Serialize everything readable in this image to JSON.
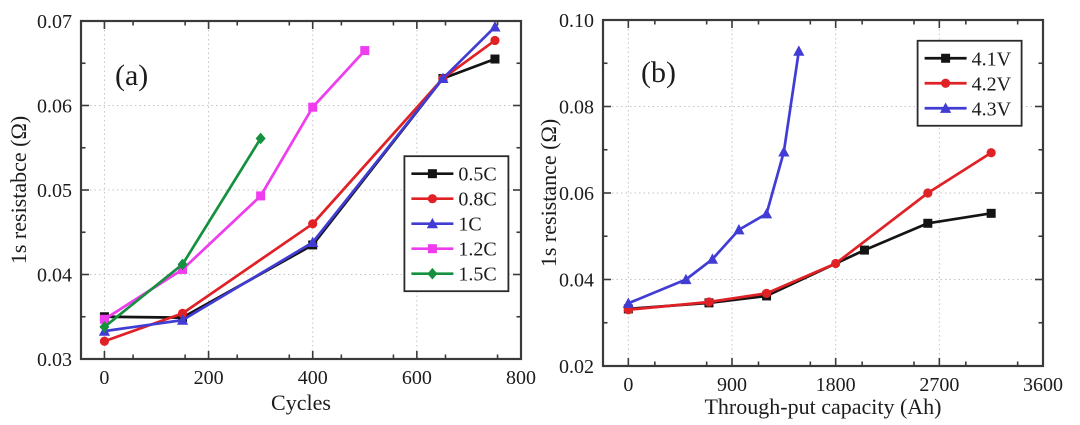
{
  "figure": {
    "background": "#ffffff",
    "frame_color": "#3a3a3a",
    "grid_color": "#c4c4c4",
    "text_color": "#1c1c1c"
  },
  "chart_data": [
    {
      "panel": "a",
      "type": "line",
      "panel_label": "(a)",
      "xlabel": "Cycles",
      "ylabel": "1s resistabce (Ω)",
      "xlim": [
        -45,
        800
      ],
      "ylim": [
        0.03,
        0.07
      ],
      "xticks": [
        0,
        200,
        400,
        600,
        800
      ],
      "yticks": [
        0.03,
        0.04,
        0.05,
        0.06,
        0.07
      ],
      "x_minor_step": 100,
      "y_minor_step": 0.005,
      "y_decimals": 2,
      "grid": true,
      "legend": {
        "fx": 0.735,
        "fy": 0.4
      },
      "series": [
        {
          "name": "0.5C",
          "color": "#141414",
          "marker": "square",
          "x": [
            0,
            150,
            400,
            650,
            750
          ],
          "y": [
            0.035,
            0.0349,
            0.0435,
            0.0632,
            0.0655
          ]
        },
        {
          "name": "0.8C",
          "color": "#e02125",
          "marker": "circle",
          "x": [
            0,
            150,
            400,
            650,
            750
          ],
          "y": [
            0.0321,
            0.0354,
            0.046,
            0.0632,
            0.0677
          ]
        },
        {
          "name": "1C",
          "color": "#403cd4",
          "marker": "triangle",
          "x": [
            0,
            150,
            400,
            650,
            750
          ],
          "y": [
            0.0333,
            0.0346,
            0.0438,
            0.0632,
            0.0693
          ]
        },
        {
          "name": "1.2C",
          "color": "#ee3cee",
          "marker": "square",
          "x": [
            0,
            150,
            300,
            400,
            500
          ],
          "y": [
            0.0347,
            0.0406,
            0.0493,
            0.0598,
            0.0665
          ]
        },
        {
          "name": "1.5C",
          "color": "#15903f",
          "marker": "diamond",
          "x": [
            0,
            150,
            300
          ],
          "y": [
            0.0338,
            0.0412,
            0.0561
          ]
        }
      ]
    },
    {
      "panel": "b",
      "type": "line",
      "panel_label": "(b)",
      "xlabel": "Through-put capacity (Ah)",
      "ylabel": "1s resistance (Ω)",
      "xlim": [
        -220,
        3600
      ],
      "ylim": [
        0.02,
        0.1
      ],
      "xticks": [
        0,
        900,
        1800,
        2700,
        3600
      ],
      "yticks": [
        0.02,
        0.04,
        0.06,
        0.08,
        0.1
      ],
      "x_minor_step": 450,
      "y_minor_step": 0.01,
      "y_decimals": 2,
      "grid": true,
      "legend": {
        "fx": 0.715,
        "fy": 0.06
      },
      "series": [
        {
          "name": "4.1V",
          "color": "#141414",
          "marker": "square",
          "x": [
            0,
            700,
            1200,
            2050,
            2600,
            3150
          ],
          "y": [
            0.0332,
            0.0346,
            0.0362,
            0.0468,
            0.053,
            0.0553
          ]
        },
        {
          "name": "4.2V",
          "color": "#e02125",
          "marker": "circle",
          "x": [
            0,
            700,
            1200,
            1800,
            2600,
            3150
          ],
          "y": [
            0.033,
            0.0348,
            0.0368,
            0.0437,
            0.06,
            0.0693
          ]
        },
        {
          "name": "4.3V",
          "color": "#403cd4",
          "marker": "triangle",
          "x": [
            0,
            500,
            730,
            960,
            1200,
            1350,
            1480
          ],
          "y": [
            0.0345,
            0.04,
            0.0447,
            0.0515,
            0.0552,
            0.0695,
            0.0928
          ]
        }
      ]
    }
  ]
}
